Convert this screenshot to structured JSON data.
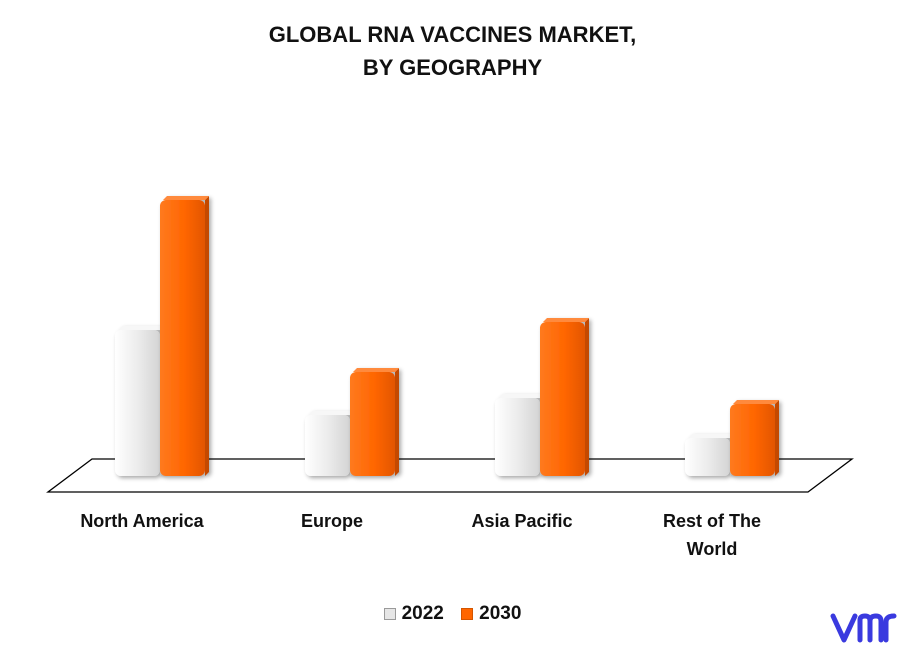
{
  "title_lines": [
    "GLOBAL RNA VACCINES MARKET,",
    "BY GEOGRAPHY"
  ],
  "chart_data": {
    "type": "bar",
    "title": "GLOBAL RNA VACCINES MARKET, BY GEOGRAPHY",
    "categories": [
      "North America",
      "Europe",
      "Asia Pacific",
      "Rest of The World"
    ],
    "category_lines": [
      [
        "North America"
      ],
      [
        "Europe"
      ],
      [
        "Asia Pacific"
      ],
      [
        "Rest of The",
        "World"
      ]
    ],
    "series": [
      {
        "name": "2022",
        "color": "#e6e6e6",
        "values": [
          150,
          65,
          82,
          42
        ]
      },
      {
        "name": "2030",
        "color": "#ff6600",
        "values": [
          280,
          108,
          158,
          76
        ]
      }
    ],
    "ylim": [
      0,
      300
    ],
    "grid": false,
    "legend_position": "bottom",
    "style": "3d"
  },
  "logo": {
    "name": "vmr-logo",
    "color": "#3a3adf"
  }
}
